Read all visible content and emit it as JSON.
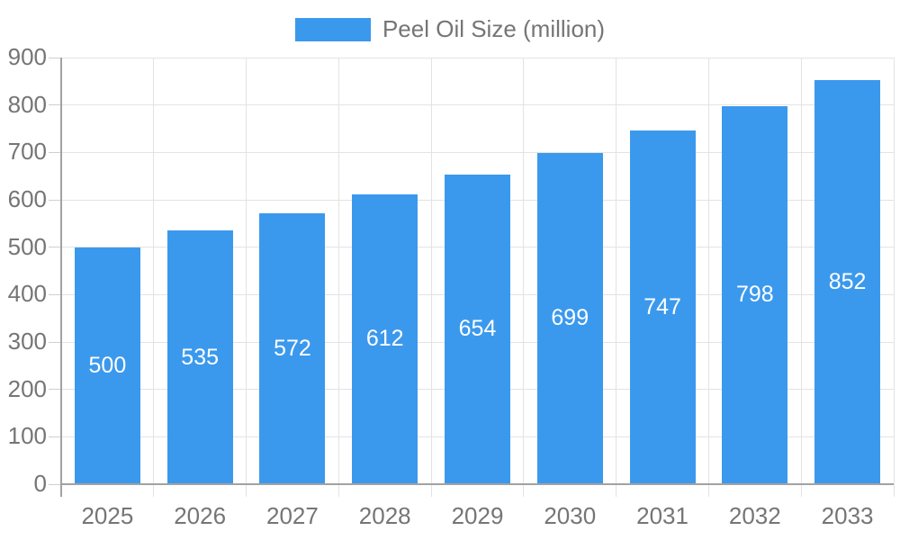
{
  "chart_data": {
    "type": "bar",
    "title": "",
    "legend": [
      "Peel Oil Size (million)"
    ],
    "legend_position": "top-center",
    "categories": [
      "2025",
      "2026",
      "2027",
      "2028",
      "2029",
      "2030",
      "2031",
      "2032",
      "2033"
    ],
    "series": [
      {
        "name": "Peel Oil Size (million)",
        "values": [
          500,
          535,
          572,
          612,
          654,
          699,
          747,
          798,
          852
        ]
      }
    ],
    "bar_value_labels_shown": true,
    "xlabel": "",
    "ylabel": "",
    "ylim": [
      0,
      900
    ],
    "yticks": [
      0,
      100,
      200,
      300,
      400,
      500,
      600,
      700,
      800,
      900
    ],
    "grid": true,
    "colors": {
      "bar": "#3B99ED",
      "axis_line": "#A2A2A2",
      "gridline": "#E3E3E3",
      "tick": "#CFCFCF",
      "axis_text": "#757575",
      "bar_value_text": "#FFFFFF",
      "background": "#FFFFFF"
    }
  }
}
